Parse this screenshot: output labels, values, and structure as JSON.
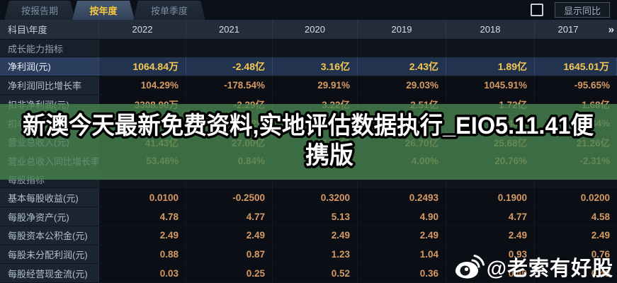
{
  "tabs": {
    "report_period": "按报告期",
    "yearly": "按年度",
    "single_quarter": "按单季度"
  },
  "controls": {
    "show_yoy_label": "显示同比"
  },
  "table": {
    "corner": "科目\\年度",
    "years": [
      "2022",
      "2021",
      "2020",
      "2019",
      "2018",
      "2017"
    ],
    "more_icon": "»",
    "rows": [
      {
        "type": "section",
        "label": "成长能力指标",
        "values": [
          "",
          "",
          "",
          "",
          "",
          ""
        ]
      },
      {
        "type": "data",
        "highlight": true,
        "label": "净利润(元)",
        "values": [
          "1064.84万",
          "-2.48亿",
          "3.16亿",
          "2.43亿",
          "1.89亿",
          "1645.01万"
        ]
      },
      {
        "type": "data",
        "label": "净利润同比增长率",
        "values": [
          "104.29%",
          "-178.54%",
          "29.91%",
          "29.03%",
          "1045.91%",
          "-95.65%"
        ]
      },
      {
        "type": "data",
        "label": "扣非净利润(元)",
        "values": [
          "3308.90万",
          "-2.29亿",
          "3.22亿",
          "2.51亿",
          "1.72亿",
          "1.68亿"
        ]
      },
      {
        "type": "data",
        "label": "扣非净利润同比增长率",
        "values": [
          "114.43%",
          "-171.12%",
          "28.29%",
          "45.92%",
          "2.48%",
          "-56.34%"
        ]
      },
      {
        "type": "data",
        "label": "营业总收入(元)",
        "values": [
          "41.43亿",
          "27.00亿",
          "26.77亿",
          "26.70亿",
          "25.68亿",
          "21.26亿"
        ]
      },
      {
        "type": "data",
        "label": "营业总收入同比增长率",
        "values": [
          "53.46%",
          "0.84%",
          "0.26%",
          "4.00%",
          "20.76%",
          "-2.31%"
        ]
      },
      {
        "type": "section",
        "label": "每股指标",
        "values": [
          "",
          "",
          "",
          "",
          "",
          ""
        ]
      },
      {
        "type": "data",
        "label": "基本每股收益(元)",
        "values": [
          "0.0100",
          "-0.2500",
          "0.3200",
          "0.2493",
          "0.1900",
          "0.0200"
        ]
      },
      {
        "type": "data",
        "label": "每股净资产(元)",
        "values": [
          "4.78",
          "4.77",
          "5.13",
          "4.90",
          "4.77",
          "4.58"
        ]
      },
      {
        "type": "data",
        "label": "每股资本公积金(元)",
        "values": [
          "2.49",
          "2.49",
          "2.49",
          "2.49",
          "2.49",
          "2.49"
        ]
      },
      {
        "type": "data",
        "label": "每股未分配利润(元)",
        "values": [
          "0.88",
          "0.87",
          "1.23",
          "1.04",
          "0.93",
          "0.76"
        ]
      },
      {
        "type": "data",
        "label": "每股经营现金流(元)",
        "values": [
          "0.03",
          "0.25",
          "0.52",
          "0.36",
          "0.40",
          "0.49"
        ]
      }
    ]
  },
  "overlay": {
    "full_text": "新澳今天最新免费资料,实地评估数据执行_EIO5.11.41便携版",
    "line1": "新澳今天最新免费资料,实地评估数据执行_EIO5.11.41便",
    "line2": "携版"
  },
  "watermark": {
    "text": "@老索有好股",
    "icon": "weibo-logo"
  },
  "colors": {
    "background": "#0a0e16",
    "active_tab_text": "#f7c93e",
    "highlight_row_bg": "#223350",
    "highlight_value": "#f6c84f",
    "value_text": "#d69a63",
    "green_overlay": "#488550"
  }
}
